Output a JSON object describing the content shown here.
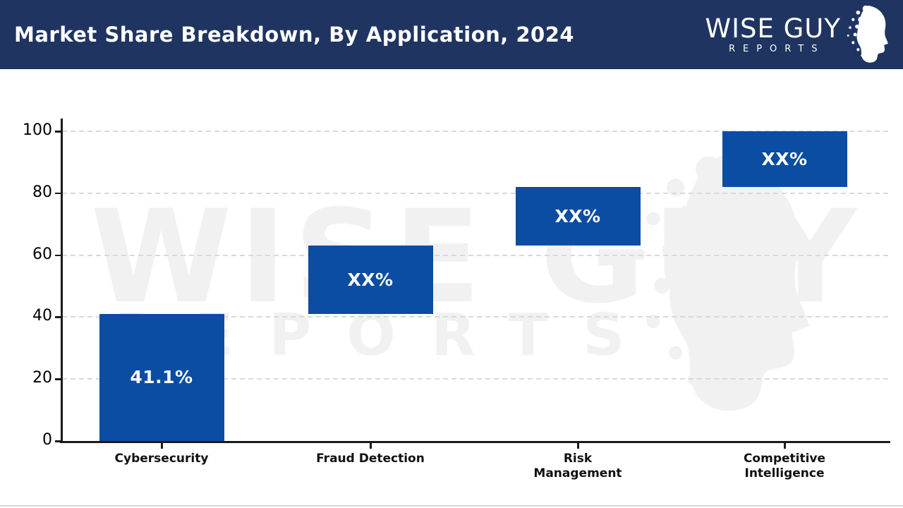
{
  "header": {
    "title": "Market Share Breakdown, By Application, 2024",
    "logo": {
      "line1": "WISE GUY",
      "line2": "REPORTS"
    }
  },
  "watermark": {
    "line1": "WISE GUY",
    "line2": "REPORTS"
  },
  "colors": {
    "header_bg": "#1f3461",
    "bar": "#0b4da2",
    "bar_label": "#ffffff",
    "grid": "#d9d9d9",
    "watermark": "#f1f1f1"
  },
  "chart_data": {
    "type": "bar",
    "variant": "waterfall",
    "title": "Market Share Breakdown, By Application, 2024",
    "categories": [
      "Cybersecurity",
      "Fraud Detection",
      "Risk Management",
      "Competitive Intelligence"
    ],
    "bars": [
      {
        "category": "Cybersecurity",
        "start": 0,
        "end": 41.1,
        "label": "41.1%"
      },
      {
        "category": "Fraud Detection",
        "start": 41.1,
        "end": 63,
        "label": "XX%"
      },
      {
        "category": "Risk Management",
        "start": 63,
        "end": 82,
        "label": "XX%"
      },
      {
        "category": "Competitive Intelligence",
        "start": 82,
        "end": 100,
        "label": "XX%"
      }
    ],
    "xlabel": "",
    "ylabel": "",
    "ylim": [
      0,
      105
    ],
    "yticks": [
      0,
      20,
      40,
      60,
      80,
      100
    ],
    "grid": "horizontal-dashed",
    "legend": "none"
  }
}
